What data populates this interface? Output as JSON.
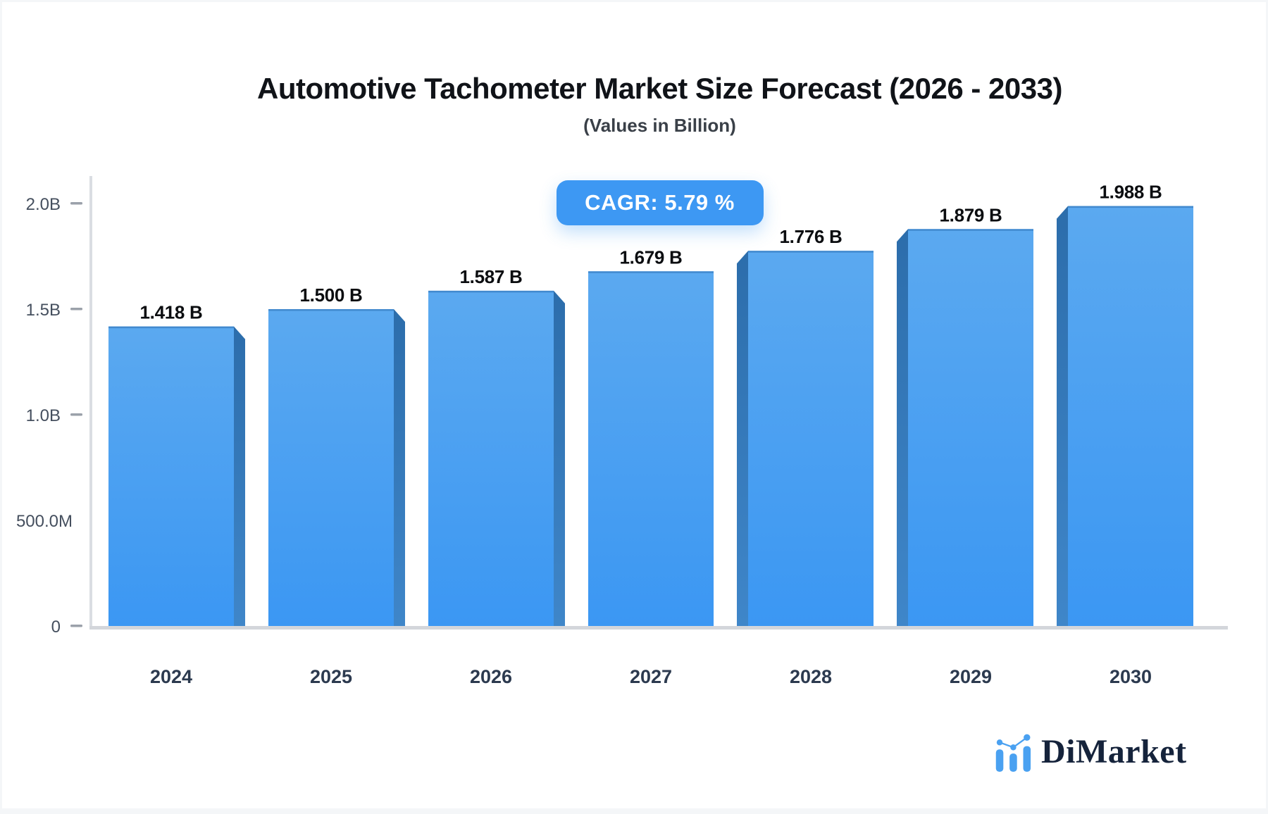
{
  "header": {
    "title": "Automotive Tachometer Market Size Forecast (2026 - 2033)",
    "subtitle": "(Values in Billion)",
    "cagr_badge": "CAGR: 5.79 %"
  },
  "chart_data": {
    "type": "bar",
    "title": "Automotive Tachometer Market Size Forecast (2026 - 2033)",
    "subtitle": "(Values in Billion)",
    "unit": "B",
    "categories": [
      "2024",
      "2025",
      "2026",
      "2027",
      "2028",
      "2029",
      "2030"
    ],
    "values": [
      1.418,
      1.5,
      1.587,
      1.679,
      1.776,
      1.879,
      1.988
    ],
    "value_labels": [
      "1.418 B",
      "1.500 B",
      "1.587 B",
      "1.679 B",
      "1.776 B",
      "1.879 B",
      "1.988 B"
    ],
    "cagr_percent": 5.79,
    "ylim": [
      0,
      2.0
    ],
    "y_ticks": [
      {
        "label": "2.0B",
        "value": 2.0,
        "dash": true
      },
      {
        "label": "1.5B",
        "value": 1.5,
        "dash": true
      },
      {
        "label": "1.0B",
        "value": 1.0,
        "dash": true
      },
      {
        "label": "500.0M",
        "value": 0.5,
        "dash": false
      },
      {
        "label": "0",
        "value": 0,
        "dash": true
      }
    ],
    "gridlines": false,
    "legend": false,
    "bar_style": "3d blocks, shaded side faces toward chart center, flat center bar"
  },
  "branding": {
    "name": "DiMarket",
    "icon": "mini-bar-line-chart-icon"
  },
  "colors": {
    "bar_face_top": "#5BA9F0",
    "bar_face_bottom": "#3B97F3",
    "bar_top_edge": "#3F86CB",
    "bar_side_top": "#2C6DAB",
    "bar_side_bottom": "#3F86C9",
    "badge_bg": "#3D98F3",
    "badge_text": "#FFFFFF",
    "axis_line": "#DADDE2",
    "baseline": "#D3D6DB",
    "tick_dash": "#9BA1AA",
    "title_text": "#101318",
    "subtitle_text": "#3A4048",
    "value_label_text": "#0B0D10",
    "x_label_text": "#2C3A4F",
    "y_label_text": "#454F5E",
    "brand_text": "#15233B",
    "brand_icon": "#4AA1F1"
  }
}
